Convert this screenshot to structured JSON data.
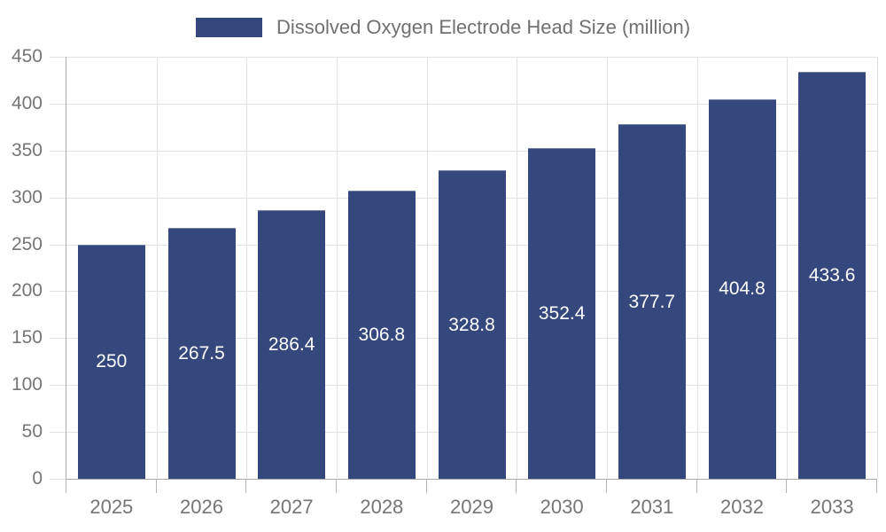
{
  "chart_data": {
    "type": "bar",
    "title": "Dissolved Oxygen Electrode Head Size (million)",
    "series_name": "Dissolved Oxygen Electrode Head Size (million)",
    "categories": [
      "2025",
      "2026",
      "2027",
      "2028",
      "2029",
      "2030",
      "2031",
      "2032",
      "2033"
    ],
    "values": [
      250,
      267.5,
      286.4,
      306.8,
      328.8,
      352.4,
      377.7,
      404.8,
      433.6
    ],
    "bar_labels": [
      "250",
      "267.5",
      "286.4",
      "306.8",
      "328.8",
      "352.4",
      "377.7",
      "404.8",
      "433.6"
    ],
    "xlabel": "",
    "ylabel": "",
    "ylim": [
      0,
      450
    ],
    "y_ticks": [
      0,
      50,
      100,
      150,
      200,
      250,
      300,
      350,
      400,
      450
    ],
    "grid": "horizontal and vertical category-boundary gridlines",
    "legend_position": "top-center",
    "bar_label_position": "inside-center"
  },
  "colors": {
    "bar": "#35487E",
    "grid_line": "#E2E2E2",
    "axis_line": "#ABABAB",
    "x_tick": "#B5B5B5",
    "y_tick": "#E2E2E2",
    "axis_text": "#757575",
    "legend_text": "#707070",
    "bar_label_text": "#FFFFFF",
    "background": "#FFFFFF"
  }
}
